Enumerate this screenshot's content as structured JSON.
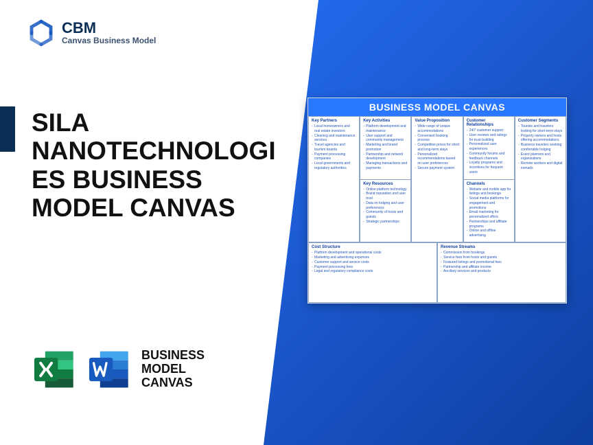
{
  "brand": {
    "title": "CBM",
    "subtitle": "Canvas Business Model",
    "logo_color": "#1456bf"
  },
  "main_title": "SILA NANOTECHNOLOGIES BUSINESS MODEL CANVAS",
  "apps": {
    "excel_color_dark": "#107c41",
    "excel_color_light": "#21a366",
    "word_color_dark": "#185abd",
    "word_color_light": "#2b7cd3",
    "label": "BUSINESS MODEL CANVAS"
  },
  "background": {
    "gradient_start": "#246bf0",
    "gradient_end": "#0e3fa0",
    "accent_bar": "#0b2e55"
  },
  "canvas": {
    "title": "BUSINESS MODEL CANVAS",
    "header_bg": "#2a78ff",
    "border_color": "#8aa3c6",
    "label_color": "#0e3fa0",
    "item_color": "#2456b8",
    "blocks": {
      "key_partners": {
        "label": "Key Partners",
        "items": [
          "Local homeowners and real estate investors",
          "Cleaning and maintenance services",
          "Travel agencies and tourism boards",
          "Payment processing companies",
          "Local governments and regulatory authorities"
        ]
      },
      "key_activities": {
        "label": "Key Activities",
        "items": [
          "Platform development and maintenance",
          "User support and community management",
          "Marketing and brand promotion",
          "Partnership and network development",
          "Managing transactions and payments"
        ]
      },
      "key_resources": {
        "label": "Key Resources",
        "items": [
          "Online platform technology",
          "Brand reputation and user trust",
          "Data on lodging and user preferences",
          "Community of hosts and guests",
          "Strategic partnerships"
        ]
      },
      "value_proposition": {
        "label": "Value Proposition",
        "items": [
          "Wide range of unique accommodations",
          "Convenient booking process",
          "Competitive prices for short and long-term stays",
          "Personalized recommendations based on user preferences",
          "Secure payment system"
        ]
      },
      "customer_relationships": {
        "label": "Customer Relationships",
        "items": [
          "24/7 customer support",
          "User reviews and ratings for trust-building",
          "Personalized user experiences",
          "Community forums and feedback channels",
          "Loyalty programs and incentives for frequent users"
        ]
      },
      "channels": {
        "label": "Channels",
        "items": [
          "Website and mobile app for listings and bookings",
          "Social media platforms for engagement and promotions",
          "Email marketing for personalized offers",
          "Partnerships and affiliate programs",
          "Online and offline advertising"
        ]
      },
      "customer_segments": {
        "label": "Customer Segments",
        "items": [
          "Tourists and travelers looking for short-term stays",
          "Property owners and hosts offering accommodations",
          "Business travelers seeking comfortable lodging",
          "Event planners and organizations",
          "Remote workers and digital nomads"
        ]
      },
      "cost_structure": {
        "label": "Cost Structure",
        "items": [
          "Platform development and operational costs",
          "Marketing and advertising expenses",
          "Customer support and service costs",
          "Payment processing fees",
          "Legal and regulatory compliance costs"
        ]
      },
      "revenue_streams": {
        "label": "Revenue Streams",
        "items": [
          "Commission from bookings",
          "Service fees from hosts and guests",
          "Featured listings and promotional fees",
          "Partnership and affiliate income",
          "Ancillary services and products"
        ]
      }
    }
  }
}
